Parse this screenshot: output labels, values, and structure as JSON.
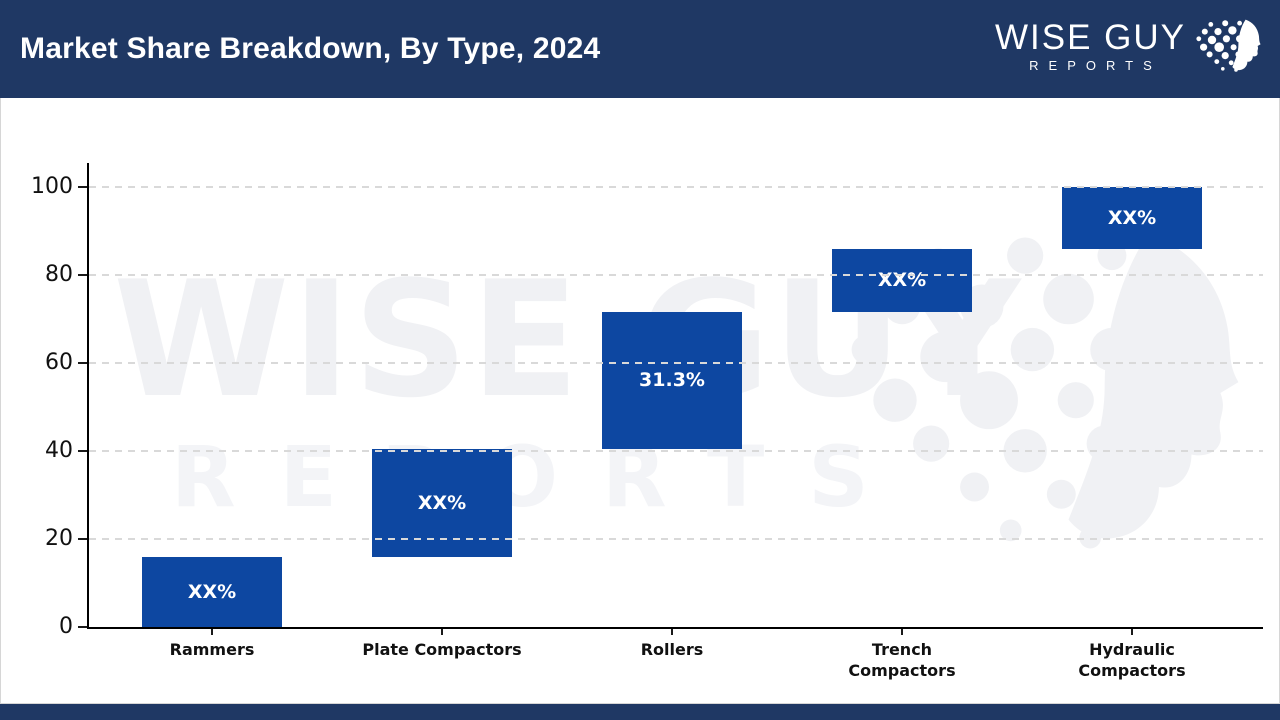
{
  "header": {
    "title": "Market Share Breakdown, By Type, 2024",
    "logo": {
      "wordmark": "WISE GUY",
      "tagline": "REPORTS"
    }
  },
  "watermark": {
    "wordmark": "WISE GUY",
    "tagline": "REPORTS"
  },
  "chart_data": {
    "type": "bar",
    "variant": "waterfall",
    "title": "Market Share Breakdown, By Type, 2024",
    "categories": [
      "Rammers",
      "Plate Compactors",
      "Rollers",
      "Trench Compactors",
      "Hydraulic Compactors"
    ],
    "segments": [
      {
        "category": "Rammers",
        "start": 0,
        "end": 15.9,
        "label": "XX%"
      },
      {
        "category": "Plate Compactors",
        "start": 15.9,
        "end": 40.4,
        "label": "XX%"
      },
      {
        "category": "Rollers",
        "start": 40.4,
        "end": 71.7,
        "label": "31.3%"
      },
      {
        "category": "Trench Compactors",
        "start": 71.7,
        "end": 86,
        "label": "XX%"
      },
      {
        "category": "Hydraulic Compactors",
        "start": 86,
        "end": 100,
        "label": "XX%"
      }
    ],
    "xlabel": "",
    "ylabel": "",
    "ylim": [
      0,
      100
    ],
    "yticks": [
      0,
      20,
      40,
      60,
      80,
      100
    ],
    "grid": {
      "horizontal": true,
      "style": "dashed"
    },
    "legend": "none",
    "bar_value_labels": [
      "XX%",
      "XX%",
      "31.3%",
      "XX%",
      "XX%"
    ]
  },
  "colors": {
    "header_bg": "#1f3864",
    "footer_bg": "#1f3864",
    "bar": "#0d47a1",
    "bar_label": "#ffffff",
    "gridline": "#d9d9d9",
    "axis": "#000000",
    "watermark": "#f0f1f4"
  }
}
